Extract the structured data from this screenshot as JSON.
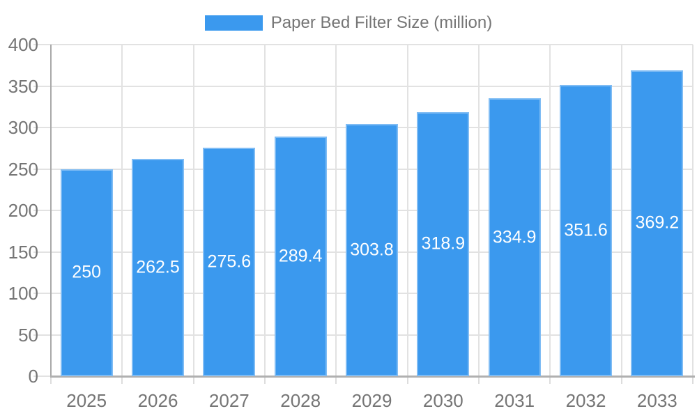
{
  "legend": {
    "label": "Paper Bed Filter Size (million)",
    "swatch_color": "#3b99ee"
  },
  "chart_data": {
    "type": "bar",
    "title": "Paper Bed Filter Size (million)",
    "categories": [
      "2025",
      "2026",
      "2027",
      "2028",
      "2029",
      "2030",
      "2031",
      "2032",
      "2033"
    ],
    "values": [
      250,
      262.5,
      275.6,
      289.4,
      303.8,
      318.9,
      334.9,
      351.6,
      369.2
    ],
    "value_labels": [
      "250",
      "262.5",
      "275.6",
      "289.4",
      "303.8",
      "318.9",
      "334.9",
      "351.6",
      "369.2"
    ],
    "xlabel": "",
    "ylabel": "",
    "ylim": [
      0,
      400
    ],
    "yticks": [
      0,
      50,
      100,
      150,
      200,
      250,
      300,
      350,
      400
    ],
    "grid": true,
    "legend_position": "top",
    "colors": {
      "bar": "#3b99ee",
      "grid": "#e2e2e2",
      "axis": "#aaaaaa",
      "tick_text": "#757575",
      "value_text": "#ffffff",
      "background": "#ffffff"
    }
  }
}
